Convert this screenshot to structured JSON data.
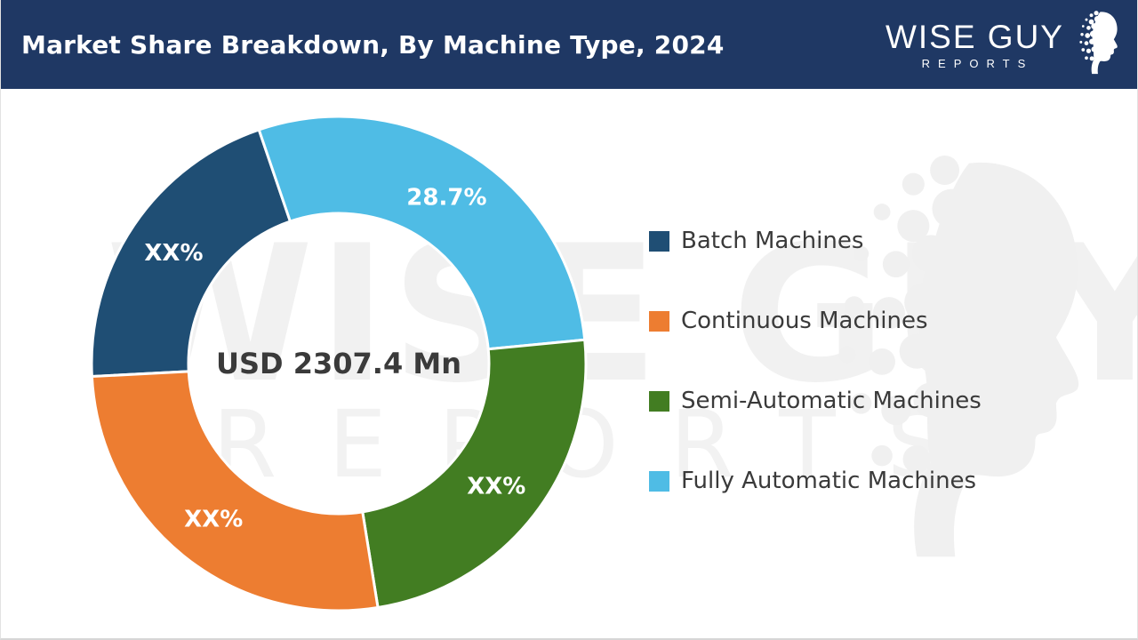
{
  "header": {
    "title": "Market Share Breakdown, By Machine Type, 2024",
    "bg_color": "#1F3864",
    "logo": {
      "line1": "WISE GUY",
      "line2": "REPORTS"
    }
  },
  "watermark": {
    "line1": "WISE GUY",
    "line2": "REPORTS"
  },
  "chart_data": {
    "type": "pie",
    "subtype": "donut",
    "title": "Market Share Breakdown, By Machine Type, 2024",
    "center_label": "USD 2307.4 Mn",
    "start_angle_clockwise_from_north_deg": 267,
    "segment_gap_color": "#ffffff",
    "segments": [
      {
        "name": "Batch Machines",
        "color": "#1F4E74",
        "value_pct": 20.6,
        "label": "XX%"
      },
      {
        "name": "Fully Automatic Machines",
        "color": "#4FBCE5",
        "value_pct": 28.7,
        "label": "28.7%"
      },
      {
        "name": "Semi-Automatic Machines",
        "color": "#427D22",
        "value_pct": 24.0,
        "label": "XX%"
      },
      {
        "name": "Continuous Machines",
        "color": "#ED7D31",
        "value_pct": 26.7,
        "label": "XX%"
      }
    ],
    "legend_position": "right",
    "legend": [
      {
        "label": "Batch Machines",
        "color": "#1F4E74"
      },
      {
        "label": "Continuous Machines",
        "color": "#ED7D31"
      },
      {
        "label": "Semi-Automatic Machines",
        "color": "#427D22"
      },
      {
        "label": "Fully Automatic Machines",
        "color": "#4FBCE5"
      }
    ]
  }
}
